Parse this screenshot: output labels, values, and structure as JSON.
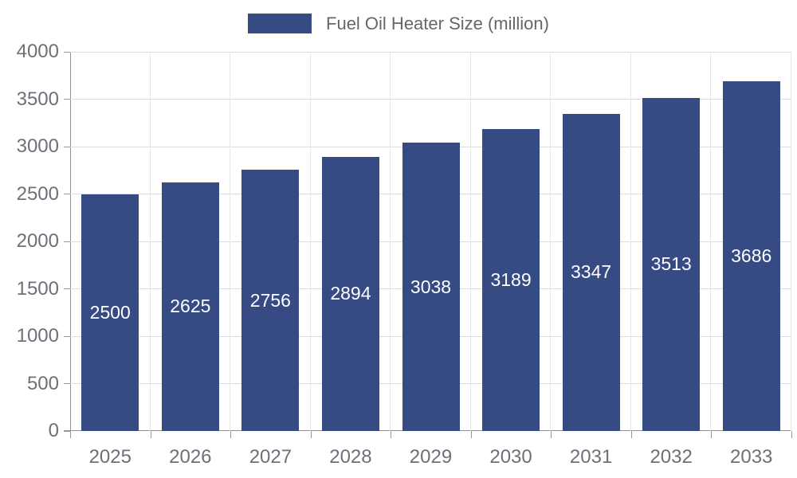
{
  "legend": {
    "label": "Fuel Oil Heater Size (million)"
  },
  "chart_data": {
    "type": "bar",
    "title": "Fuel Oil Heater Size (million)",
    "categories": [
      "2025",
      "2026",
      "2027",
      "2028",
      "2029",
      "2030",
      "2031",
      "2032",
      "2033"
    ],
    "series": [
      {
        "name": "Fuel Oil Heater Size (million)",
        "values": [
          2500,
          2625,
          2756,
          2894,
          3038,
          3189,
          3347,
          3513,
          3686
        ]
      }
    ],
    "xlabel": "",
    "ylabel": "",
    "ylim": [
      0,
      4000
    ],
    "yticks": [
      0,
      500,
      1000,
      1500,
      2000,
      2500,
      3000,
      3500,
      4000
    ],
    "grid": "on",
    "legend_position": "top-center",
    "bar_labels_inside": true,
    "colors": {
      "bar": "#364A84",
      "bar_label": "#ffffff",
      "axis_text": "#6e7079",
      "legend_text": "#666666",
      "gridline": "#dddddd",
      "axis_line": "#919191"
    }
  }
}
